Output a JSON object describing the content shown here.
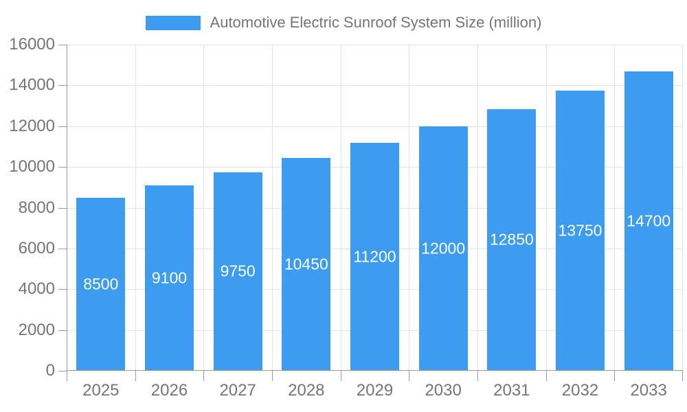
{
  "chart_data": {
    "type": "bar",
    "title": "Automotive Electric Sunroof System Size (million)",
    "categories": [
      "2025",
      "2026",
      "2027",
      "2028",
      "2029",
      "2030",
      "2031",
      "2032",
      "2033"
    ],
    "values": [
      8500,
      9100,
      9750,
      10450,
      11200,
      12000,
      12850,
      13750,
      14700
    ],
    "xlabel": "",
    "ylabel": "",
    "ylim": [
      0,
      16000
    ],
    "ytick_step": 2000,
    "ytick_labels": [
      "0",
      "2000",
      "4000",
      "6000",
      "8000",
      "10000",
      "12000",
      "14000",
      "16000"
    ],
    "grid": true,
    "legend_position": "top-center",
    "value_labels": "inside-center",
    "colors": {
      "bar": "#3D9CF0",
      "bar_label": "#ffffff",
      "axis_text": "#757575",
      "grid_line": "#e3e3e3",
      "axis_line": "#9a9a9a",
      "background": "#ffffff"
    }
  }
}
